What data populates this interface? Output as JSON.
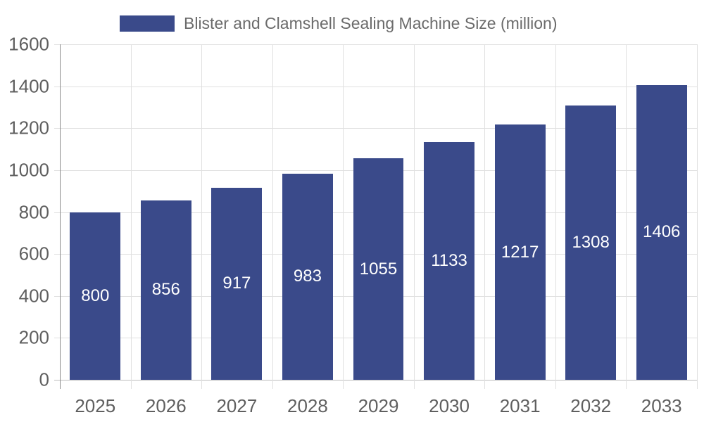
{
  "legend": {
    "label": "Blister and Clamshell Sealing Machine Size (million)"
  },
  "chart_data": {
    "type": "bar",
    "title": "Blister and Clamshell Sealing Machine Size (million)",
    "categories": [
      "2025",
      "2026",
      "2027",
      "2028",
      "2029",
      "2030",
      "2031",
      "2032",
      "2033"
    ],
    "values": [
      800,
      856,
      917,
      983,
      1055,
      1133,
      1217,
      1308,
      1406
    ],
    "series": [
      {
        "name": "Blister and Clamshell Sealing Machine Size (million)",
        "values": [
          800,
          856,
          917,
          983,
          1055,
          1133,
          1217,
          1308,
          1406
        ]
      }
    ],
    "xlabel": "",
    "ylabel": "",
    "ylim": [
      0,
      1600
    ],
    "ytick_step": 200,
    "ytick_labels": [
      "0",
      "200",
      "400",
      "600",
      "800",
      "1000",
      "1200",
      "1400",
      "1600"
    ],
    "grid": true,
    "legend_position": "top",
    "value_labels": "inside-center",
    "colors": {
      "bar": "#3a4a8a",
      "gridline": "#e0e0e0",
      "y_axis_line": "#8c8c8c",
      "x_axis_line": "#bdbdbd",
      "axis_text": "#5f5f5f",
      "legend_text": "#6b6b6b",
      "value_label_text": "#ffffff",
      "background": "#ffffff"
    }
  }
}
